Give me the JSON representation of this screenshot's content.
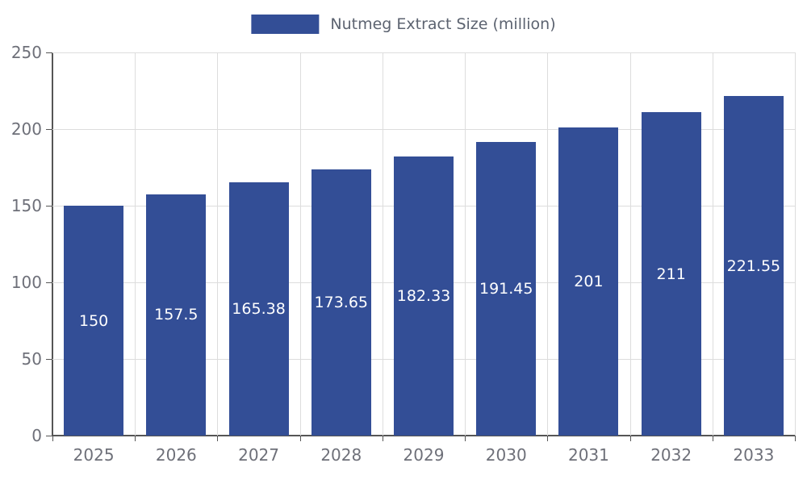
{
  "legend": {
    "label": "Nutmeg Extract Size (million)"
  },
  "colors": {
    "bar": "#334E96",
    "grid": "#dddddd",
    "axis": "#555555",
    "tick_text": "#6E7079",
    "value_text": "#ffffff",
    "legend_text": "#5c6370"
  },
  "chart_data": {
    "type": "bar",
    "title": "Nutmeg Extract Size (million)",
    "categories": [
      "2025",
      "2026",
      "2027",
      "2028",
      "2029",
      "2030",
      "2031",
      "2032",
      "2033"
    ],
    "values": [
      150,
      157.5,
      165.38,
      173.65,
      182.33,
      191.45,
      201,
      211,
      221.55
    ],
    "value_labels": [
      "150",
      "157.5",
      "165.38",
      "173.65",
      "182.33",
      "191.45",
      "201",
      "211",
      "221.55"
    ],
    "xlabel": "",
    "ylabel": "",
    "ylim": [
      0,
      250
    ],
    "yticks": [
      0,
      50,
      100,
      150,
      200,
      250
    ],
    "grid": true,
    "legend_position": "top",
    "value_label_position": "inside-center"
  }
}
